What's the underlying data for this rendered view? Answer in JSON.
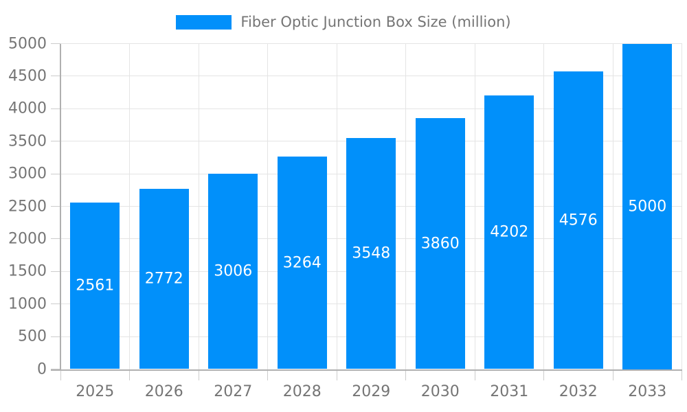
{
  "legend": {
    "label": "Fiber Optic Junction Box Size (million)"
  },
  "colors": {
    "bar": "#0190fa",
    "grid": "#e4e4e4",
    "axis": "#b0b0b0",
    "tick": "#cccccc",
    "text": "#757575",
    "value_label": "#ffffff",
    "background": "#ffffff"
  },
  "chart_data": {
    "type": "bar",
    "title": "Fiber Optic Junction Box Size (million)",
    "categories": [
      "2025",
      "2026",
      "2027",
      "2028",
      "2029",
      "2030",
      "2031",
      "2032",
      "2033"
    ],
    "values": [
      2561,
      2772,
      3006,
      3264,
      3548,
      3860,
      4202,
      4576,
      5000
    ],
    "xlabel": "",
    "ylabel": "",
    "ylim": [
      0,
      5000
    ],
    "y_ticks": [
      0,
      500,
      1000,
      1500,
      2000,
      2500,
      3000,
      3500,
      4000,
      4500,
      5000
    ],
    "grid": "both",
    "legend_position": "top-center",
    "value_labels": "inside-center"
  }
}
